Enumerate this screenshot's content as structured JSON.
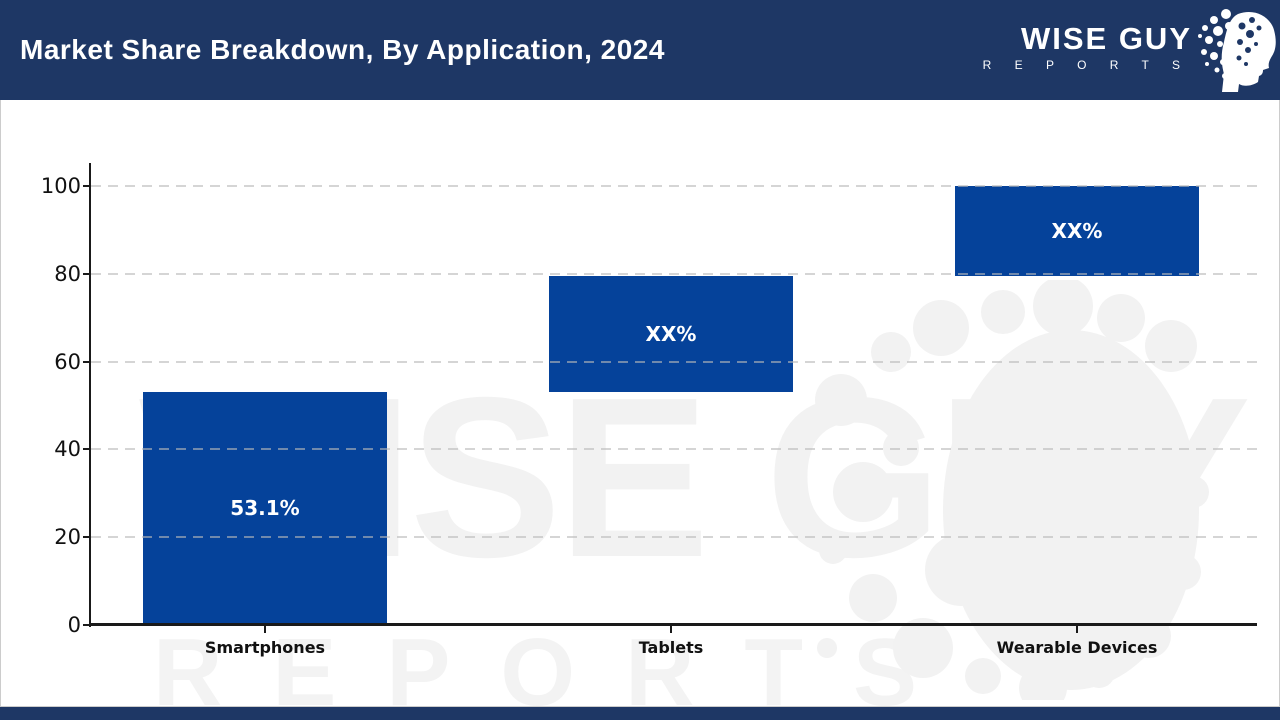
{
  "header": {
    "title": "Market Share Breakdown, By Application, 2024",
    "brand": {
      "line1": "WISE GUY",
      "line2": "REPORTS"
    }
  },
  "watermark": {
    "line1": "WISE GUY",
    "line2": "REPORTS"
  },
  "footer": {},
  "chart_data": {
    "type": "bar",
    "variant": "floating-waterfall",
    "title": "Market Share Breakdown, By Application, 2024",
    "categories": [
      "Smartphones",
      "Tablets",
      "Wearable Devices"
    ],
    "bars": [
      {
        "category": "Smartphones",
        "start": 0,
        "end": 53.1,
        "label": "53.1%"
      },
      {
        "category": "Tablets",
        "start": 53.1,
        "end": 79.6,
        "label": "XX%"
      },
      {
        "category": "Wearable Devices",
        "start": 79.6,
        "end": 100,
        "label": "XX%"
      }
    ],
    "xlabel": "",
    "ylabel": "",
    "ylim": [
      0,
      105
    ],
    "yticks": [
      0,
      20,
      40,
      60,
      80,
      100
    ],
    "grid": "horizontal-dashed",
    "legend": null,
    "bar_color": "#05429a",
    "grid_color": "#d9d9d9",
    "header_bg": "#1e3765",
    "footer_bg": "#1e3765",
    "watermark_color": "#f2f2f2"
  }
}
